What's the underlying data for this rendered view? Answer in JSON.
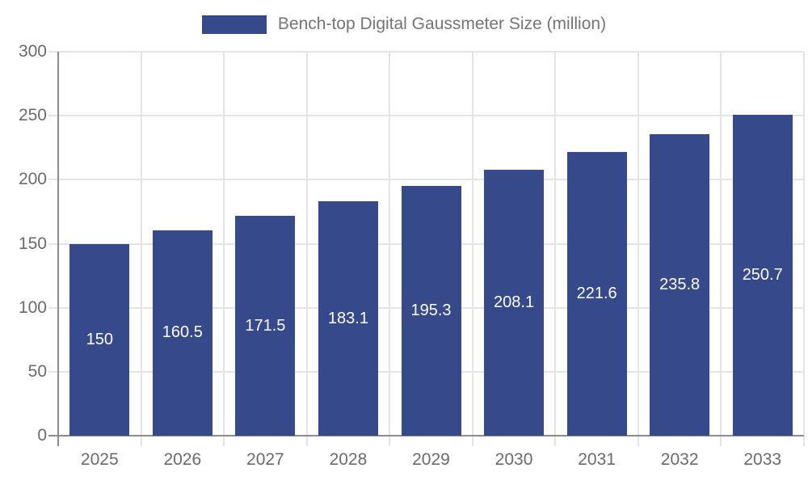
{
  "legend": {
    "label": "Bench-top Digital Gaussmeter Size (million)"
  },
  "chart_data": {
    "type": "bar",
    "title": "",
    "categories": [
      "2025",
      "2026",
      "2027",
      "2028",
      "2029",
      "2030",
      "2031",
      "2032",
      "2033"
    ],
    "series": [
      {
        "name": "Bench-top Digital Gaussmeter Size (million)",
        "values": [
          150,
          160.5,
          171.5,
          183.1,
          195.3,
          208.1,
          221.6,
          235.8,
          250.7
        ]
      }
    ],
    "value_labels": [
      "150",
      "160.5",
      "171.5",
      "183.1",
      "195.3",
      "208.1",
      "221.6",
      "235.8",
      "250.7"
    ],
    "xlabel": "",
    "ylabel": "",
    "ylim": [
      0,
      300
    ],
    "yticks": [
      0,
      50,
      100,
      150,
      200,
      250,
      300
    ],
    "grid": true,
    "legend_position": "top",
    "value_label_position": "inside-center",
    "colors": {
      "bar": "#36498a",
      "axis_line": "#8c8c8c",
      "gridline": "#e4e4e4",
      "tick_label": "#6b6b6b",
      "legend_text": "#757575",
      "value_label": "#ffffff",
      "background": "#ffffff"
    }
  }
}
